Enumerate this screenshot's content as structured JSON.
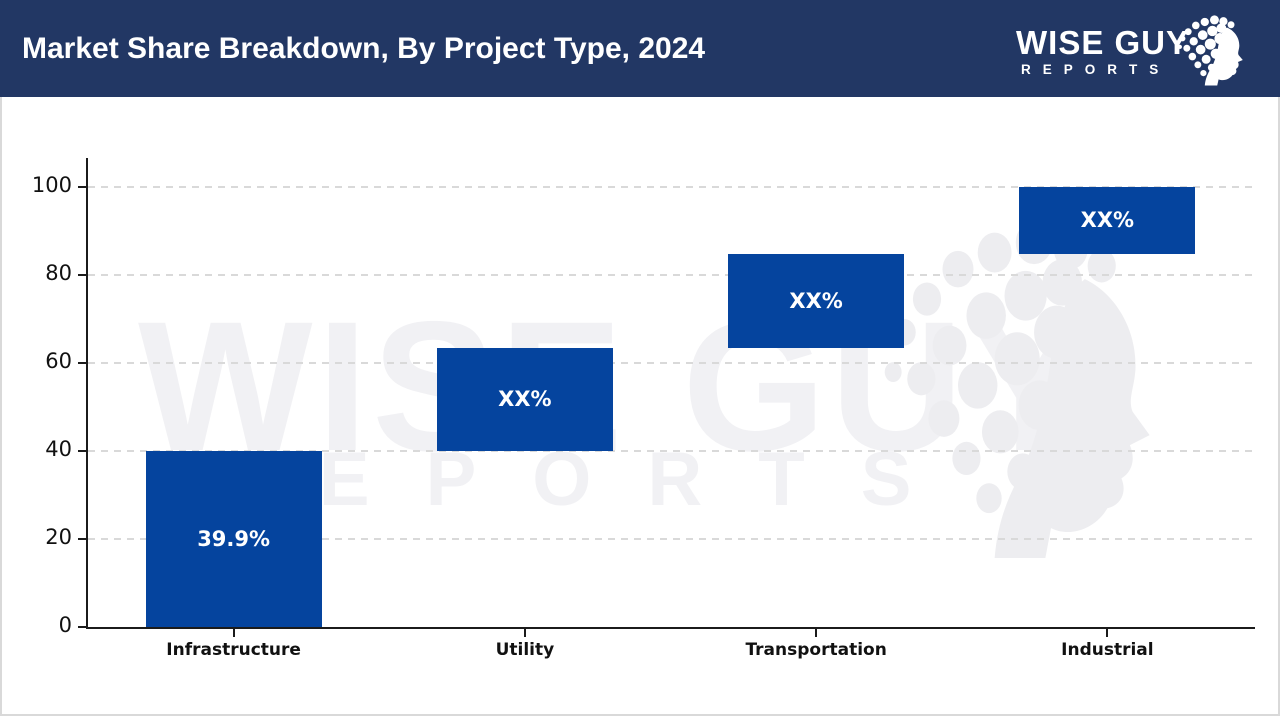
{
  "page": {
    "background": "#ffffff",
    "frame_color": "#d9d9d9"
  },
  "header": {
    "title": "Market Share Breakdown, By Project Type, 2024",
    "bg_color": "#223764",
    "text_color": "#ffffff",
    "logo": {
      "line1": "WISE GUY",
      "line2": "REPORTS"
    }
  },
  "watermark": {
    "line1": "WISE GUY",
    "line2": "REPORTS"
  },
  "chart_data": {
    "type": "bar",
    "subtype": "waterfall-floating-bars",
    "title": "Market Share Breakdown, By Project Type, 2024",
    "categories": [
      "Infrastructure",
      "Utility",
      "Transportation",
      "Industrial"
    ],
    "segments": [
      {
        "category": "Infrastructure",
        "start": 0,
        "end": 39.9,
        "label": "39.9%"
      },
      {
        "category": "Utility",
        "start": 40,
        "end": 63.5,
        "label": "XX%"
      },
      {
        "category": "Transportation",
        "start": 63.5,
        "end": 84.8,
        "label": "XX%"
      },
      {
        "category": "Industrial",
        "start": 84.8,
        "end": 100,
        "label": "XX%"
      }
    ],
    "xlabel": "",
    "ylabel": "",
    "ylim": [
      0,
      100
    ],
    "yticks": [
      0,
      20,
      40,
      60,
      80,
      100
    ],
    "grid": "horizontal-dashed",
    "legend": "none",
    "bar_color": "#05449e",
    "bar_label_color": "#ffffff",
    "axis_color": "#1b1b1b",
    "grid_color": "#d9d9d9",
    "tick_label_color": "#111111"
  }
}
